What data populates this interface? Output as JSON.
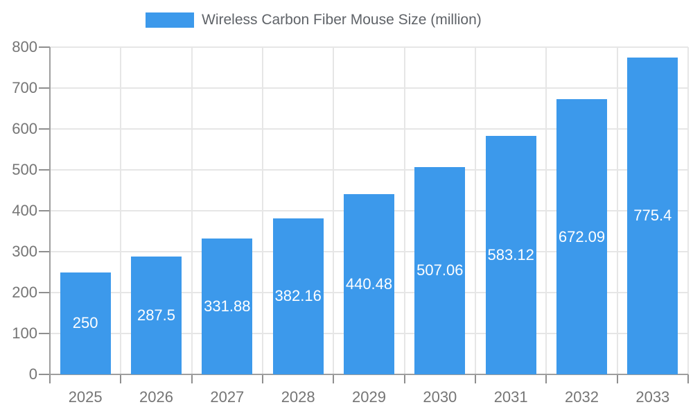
{
  "chart_data": {
    "type": "bar",
    "title": "Wireless Carbon Fiber Mouse Size (million)",
    "legend": {
      "position": "top-center",
      "items": [
        "Wireless Carbon Fiber Mouse Size (million)"
      ]
    },
    "categories": [
      "2025",
      "2026",
      "2027",
      "2028",
      "2029",
      "2030",
      "2031",
      "2032",
      "2033"
    ],
    "series": [
      {
        "name": "Wireless Carbon Fiber Mouse Size (million)",
        "values": [
          250,
          287.5,
          331.88,
          382.16,
          440.48,
          507.06,
          583.12,
          672.09,
          775.4
        ]
      }
    ],
    "value_labels": [
      "250",
      "287.5",
      "331.88",
      "382.16",
      "440.48",
      "507.06",
      "583.12",
      "672.09",
      "775.4"
    ],
    "xlabel": "",
    "ylabel": "",
    "ylim": [
      0,
      800
    ],
    "ytick_step": 100,
    "ytick_labels": [
      "0",
      "100",
      "200",
      "300",
      "400",
      "500",
      "600",
      "700",
      "800"
    ],
    "grid": {
      "horizontal": true,
      "vertical": true
    },
    "colors": {
      "bar": "#3C99EB",
      "gridline": "#e6e6e6",
      "axis": "#9e9e9e",
      "tick": "#8f8f8f",
      "tick_label": "#757575",
      "title": "#5f6368",
      "value_label": "#ffffff",
      "background": "#ffffff"
    }
  }
}
